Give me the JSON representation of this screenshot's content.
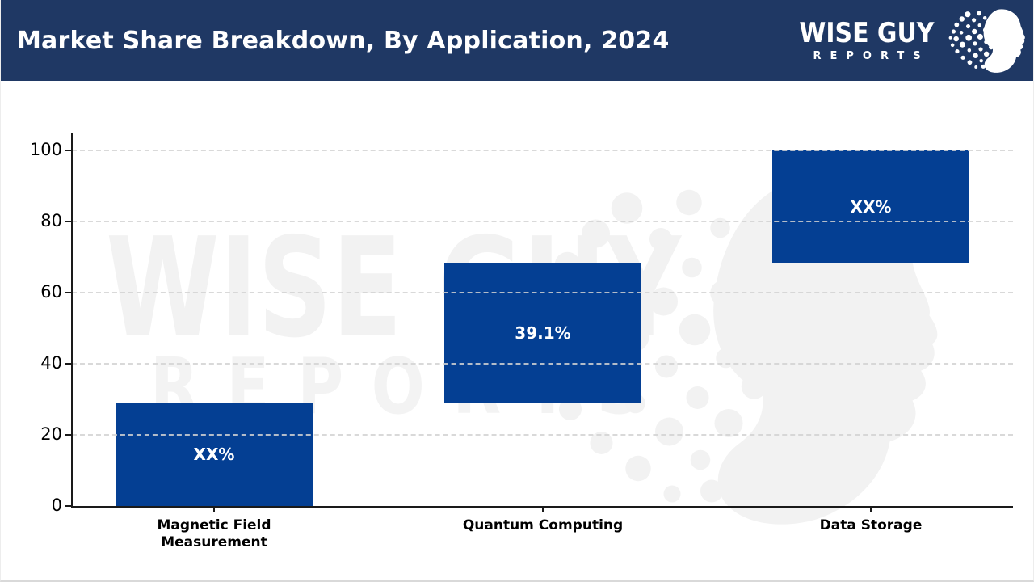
{
  "header": {
    "title": "Market Share Breakdown, By Application, 2024",
    "logo": {
      "wordmark": "WISE GUY",
      "sub": "REPORTS"
    }
  },
  "watermark": {
    "wordmark": "WISE GUY",
    "sub": "REPORTS"
  },
  "chart_data": {
    "type": "bar",
    "subtype": "floating-waterfall",
    "title": "Market Share Breakdown, By Application, 2024",
    "xlabel": "",
    "ylabel": "",
    "categories": [
      "Magnetic Field Measurement",
      "Quantum Computing",
      "Data Storage"
    ],
    "category_lines": [
      [
        "Magnetic Field",
        "Measurement"
      ],
      [
        "Quantum Computing"
      ],
      [
        "Data Storage"
      ]
    ],
    "segments": [
      {
        "category": "Magnetic Field Measurement",
        "start": 0,
        "end": 29.2,
        "value": 29.2,
        "label": "XX%"
      },
      {
        "category": "Quantum Computing",
        "start": 29.2,
        "end": 68.3,
        "value": 39.1,
        "label": "39.1%"
      },
      {
        "category": "Data Storage",
        "start": 68.3,
        "end": 100,
        "value": 31.7,
        "label": "XX%"
      }
    ],
    "ylim": [
      0,
      100
    ],
    "yticks": [
      0,
      20,
      40,
      60,
      80,
      100
    ],
    "grid": "horizontal-dashed-over-bars",
    "legend": "none",
    "bar_color": "#043f93",
    "bar_label_color": "#ffffff",
    "header_color": "#1f3864",
    "grid_color": "#d2d2d2"
  }
}
